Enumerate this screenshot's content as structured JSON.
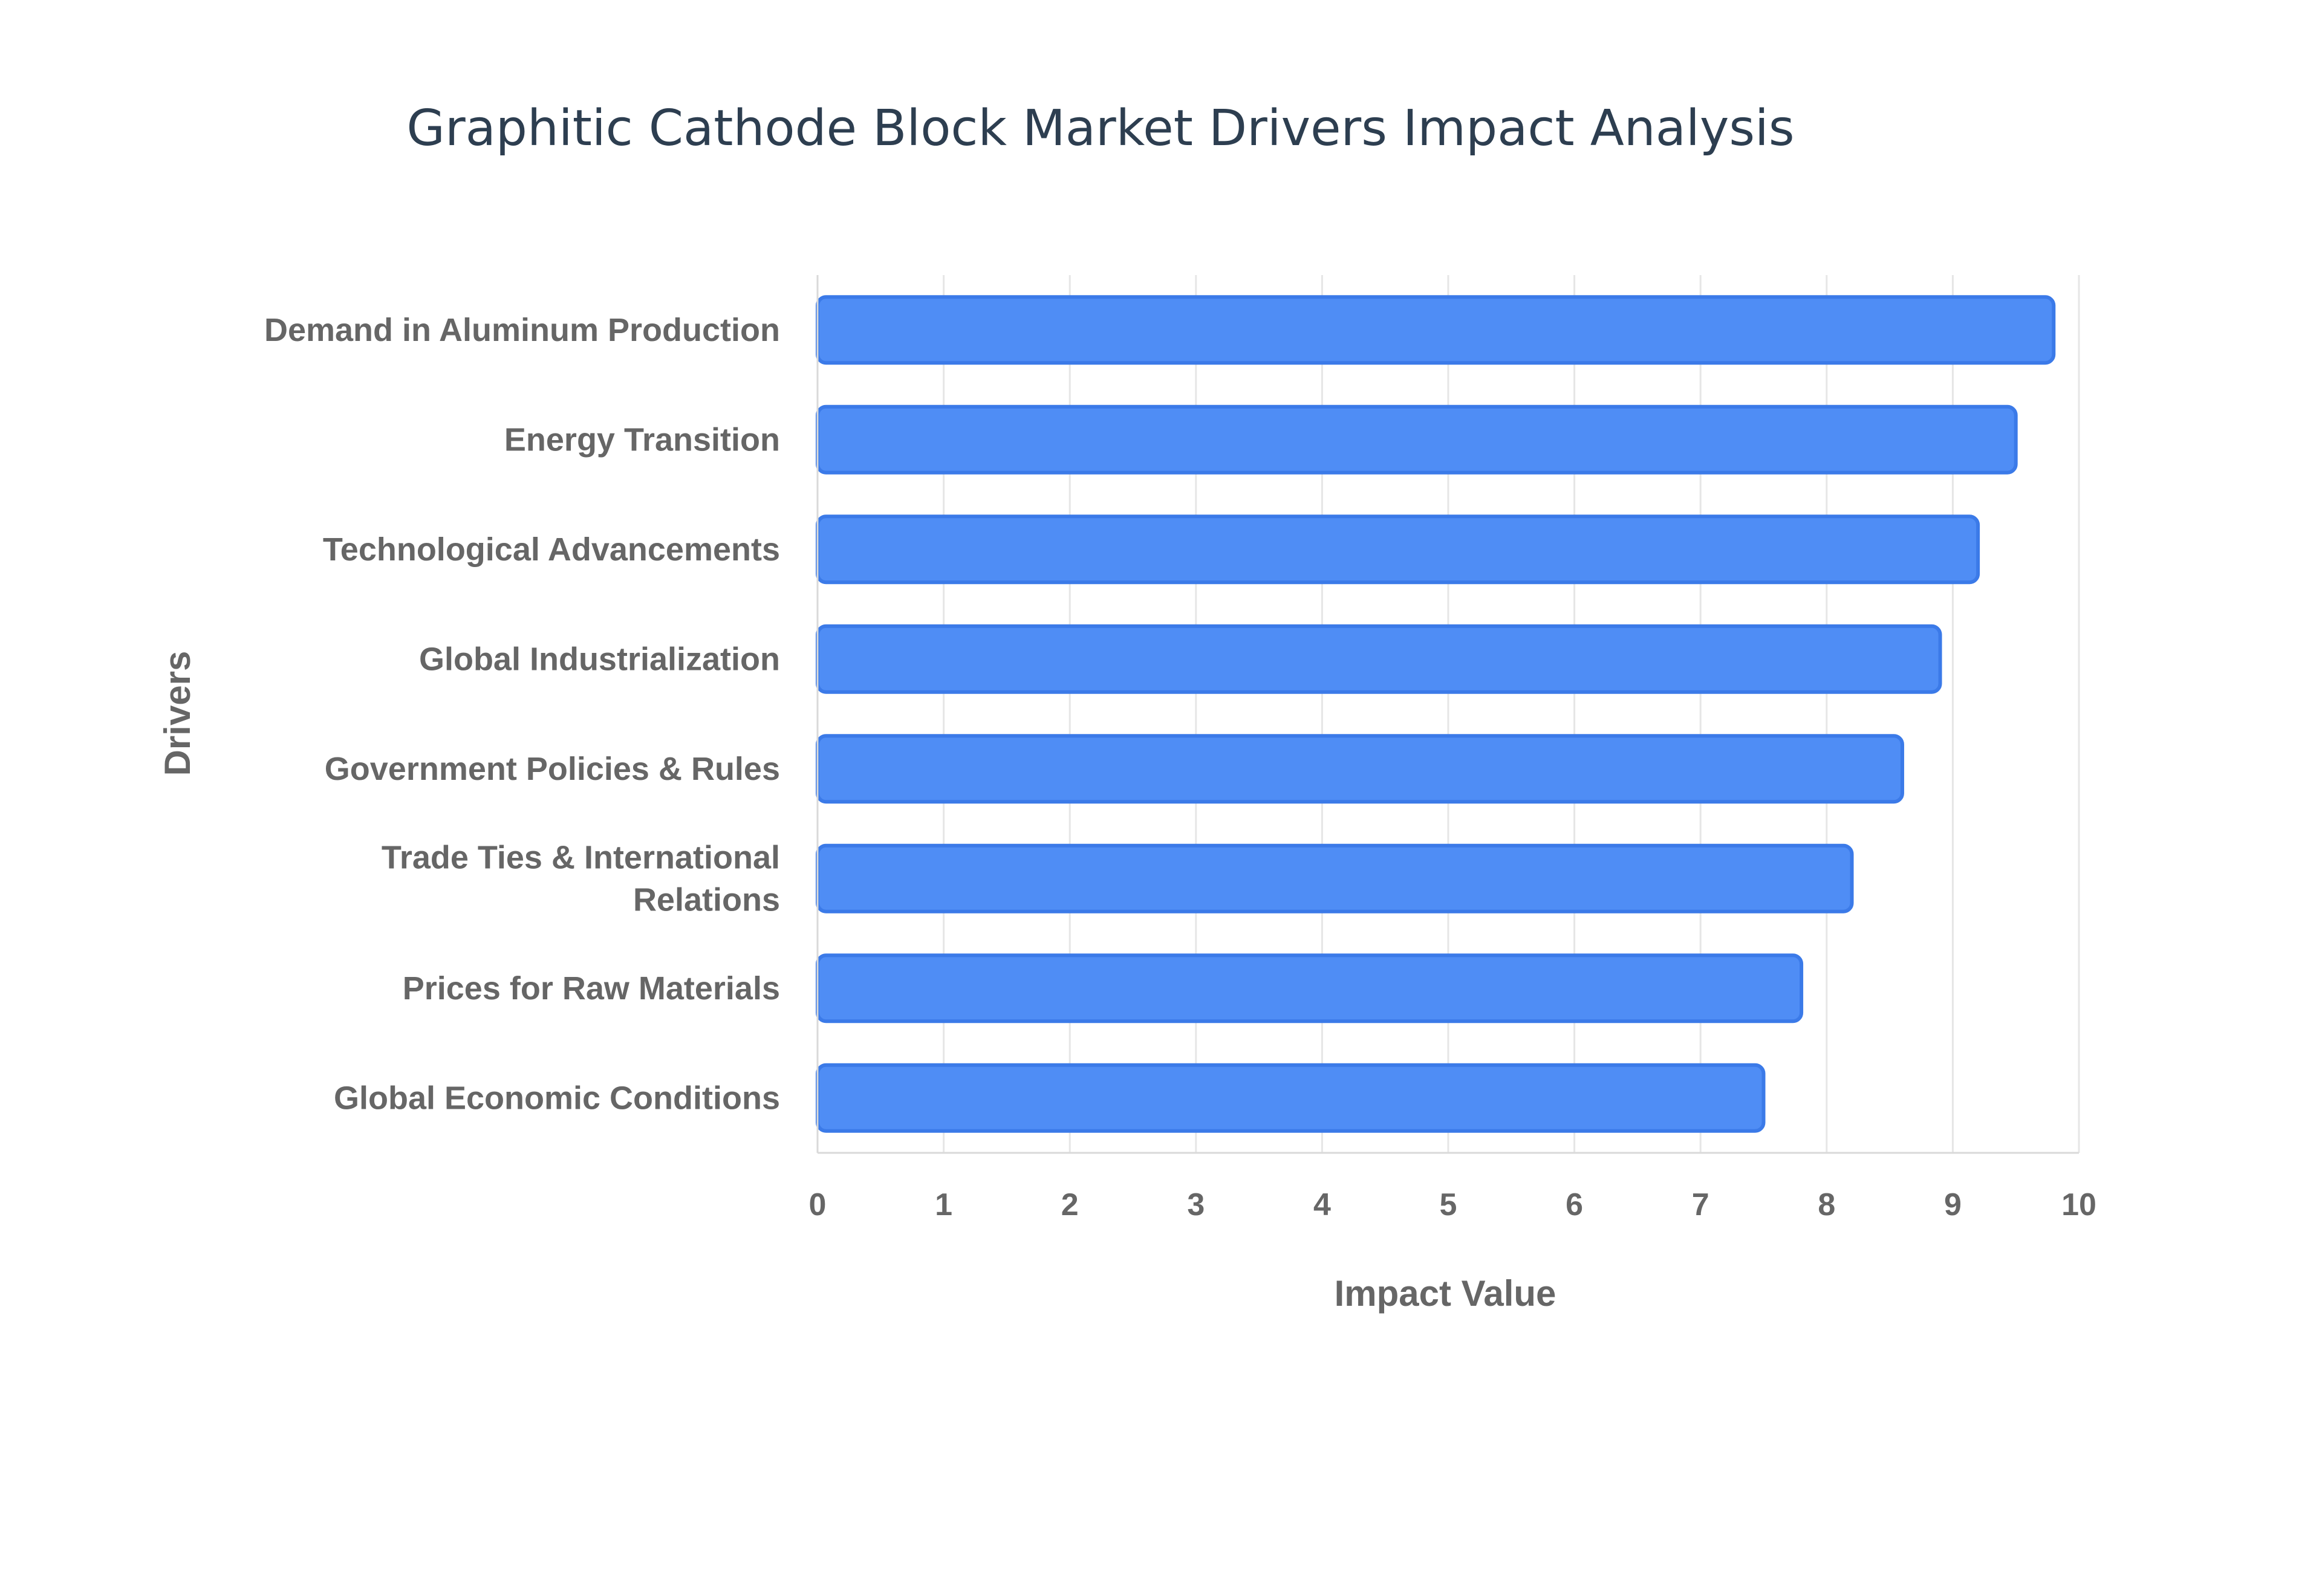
{
  "chart_data": {
    "type": "bar",
    "orientation": "horizontal",
    "title": "Graphitic Cathode Block Market Drivers Impact Analysis",
    "xlabel": "Impact Value",
    "ylabel": "Drivers",
    "xlim": [
      0,
      10
    ],
    "x_ticks": [
      0,
      1,
      2,
      3,
      4,
      5,
      6,
      7,
      8,
      9,
      10
    ],
    "grid": true,
    "legend": "none",
    "categories": [
      "Demand in Aluminum Production",
      "Energy Transition",
      "Technological Advancements",
      "Global Industrialization",
      "Government Policies & Rules",
      "Trade Ties & International Relations",
      "Prices for Raw Materials",
      "Global Economic Conditions"
    ],
    "category_lines": [
      [
        "Demand in Aluminum Production"
      ],
      [
        "Energy Transition"
      ],
      [
        "Technological Advancements"
      ],
      [
        "Global Industrialization"
      ],
      [
        "Government Policies & Rules"
      ],
      [
        "Trade Ties & International",
        "Relations"
      ],
      [
        "Prices for Raw Materials"
      ],
      [
        "Global Economic Conditions"
      ]
    ],
    "values": [
      9.8,
      9.5,
      9.2,
      8.9,
      8.6,
      8.2,
      7.8,
      7.5
    ],
    "colors": {
      "bar_fill": "#4f8df5",
      "bar_stroke": "#3b7ae8",
      "text": "#666666",
      "title": "#2d3e50"
    }
  }
}
